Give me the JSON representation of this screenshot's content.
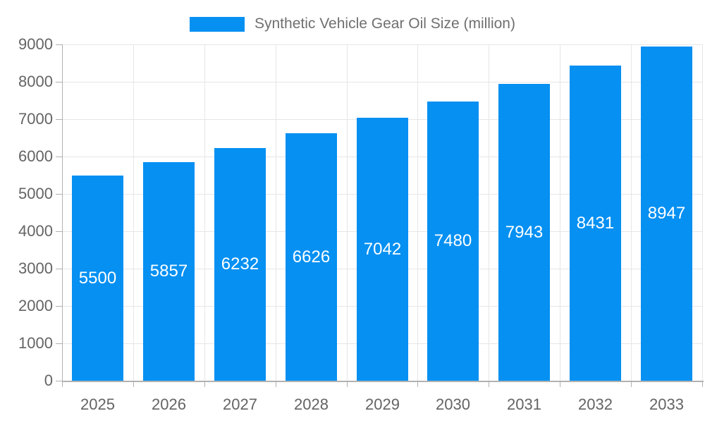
{
  "legend": {
    "label": "Synthetic Vehicle Gear Oil Size (million)"
  },
  "colors": {
    "bar": "#0590f2",
    "gridline": "#e6e6e6",
    "axis": "#b1b1b1",
    "axis_text": "#646464",
    "legend_text": "#6f6f6f",
    "bar_label_text": "#ffffff"
  },
  "chart_data": {
    "type": "bar",
    "title": "Synthetic Vehicle Gear Oil Size (million)",
    "categories": [
      "2025",
      "2026",
      "2027",
      "2028",
      "2029",
      "2030",
      "2031",
      "2032",
      "2033"
    ],
    "values": [
      5500,
      5857,
      6232,
      6626,
      7042,
      7480,
      7943,
      8431,
      8947
    ],
    "series_name": "Synthetic Vehicle Gear Oil Size (million)",
    "xlabel": "",
    "ylabel": "",
    "ylim": [
      0,
      9000
    ],
    "ytick_step": 1000,
    "ytick_labels": [
      "0",
      "1000",
      "2000",
      "3000",
      "4000",
      "5000",
      "6000",
      "7000",
      "8000",
      "9000"
    ],
    "grid": true,
    "legend_position": "top-center",
    "bar_labels_visible": true,
    "bar_label_position": "inside-center"
  }
}
